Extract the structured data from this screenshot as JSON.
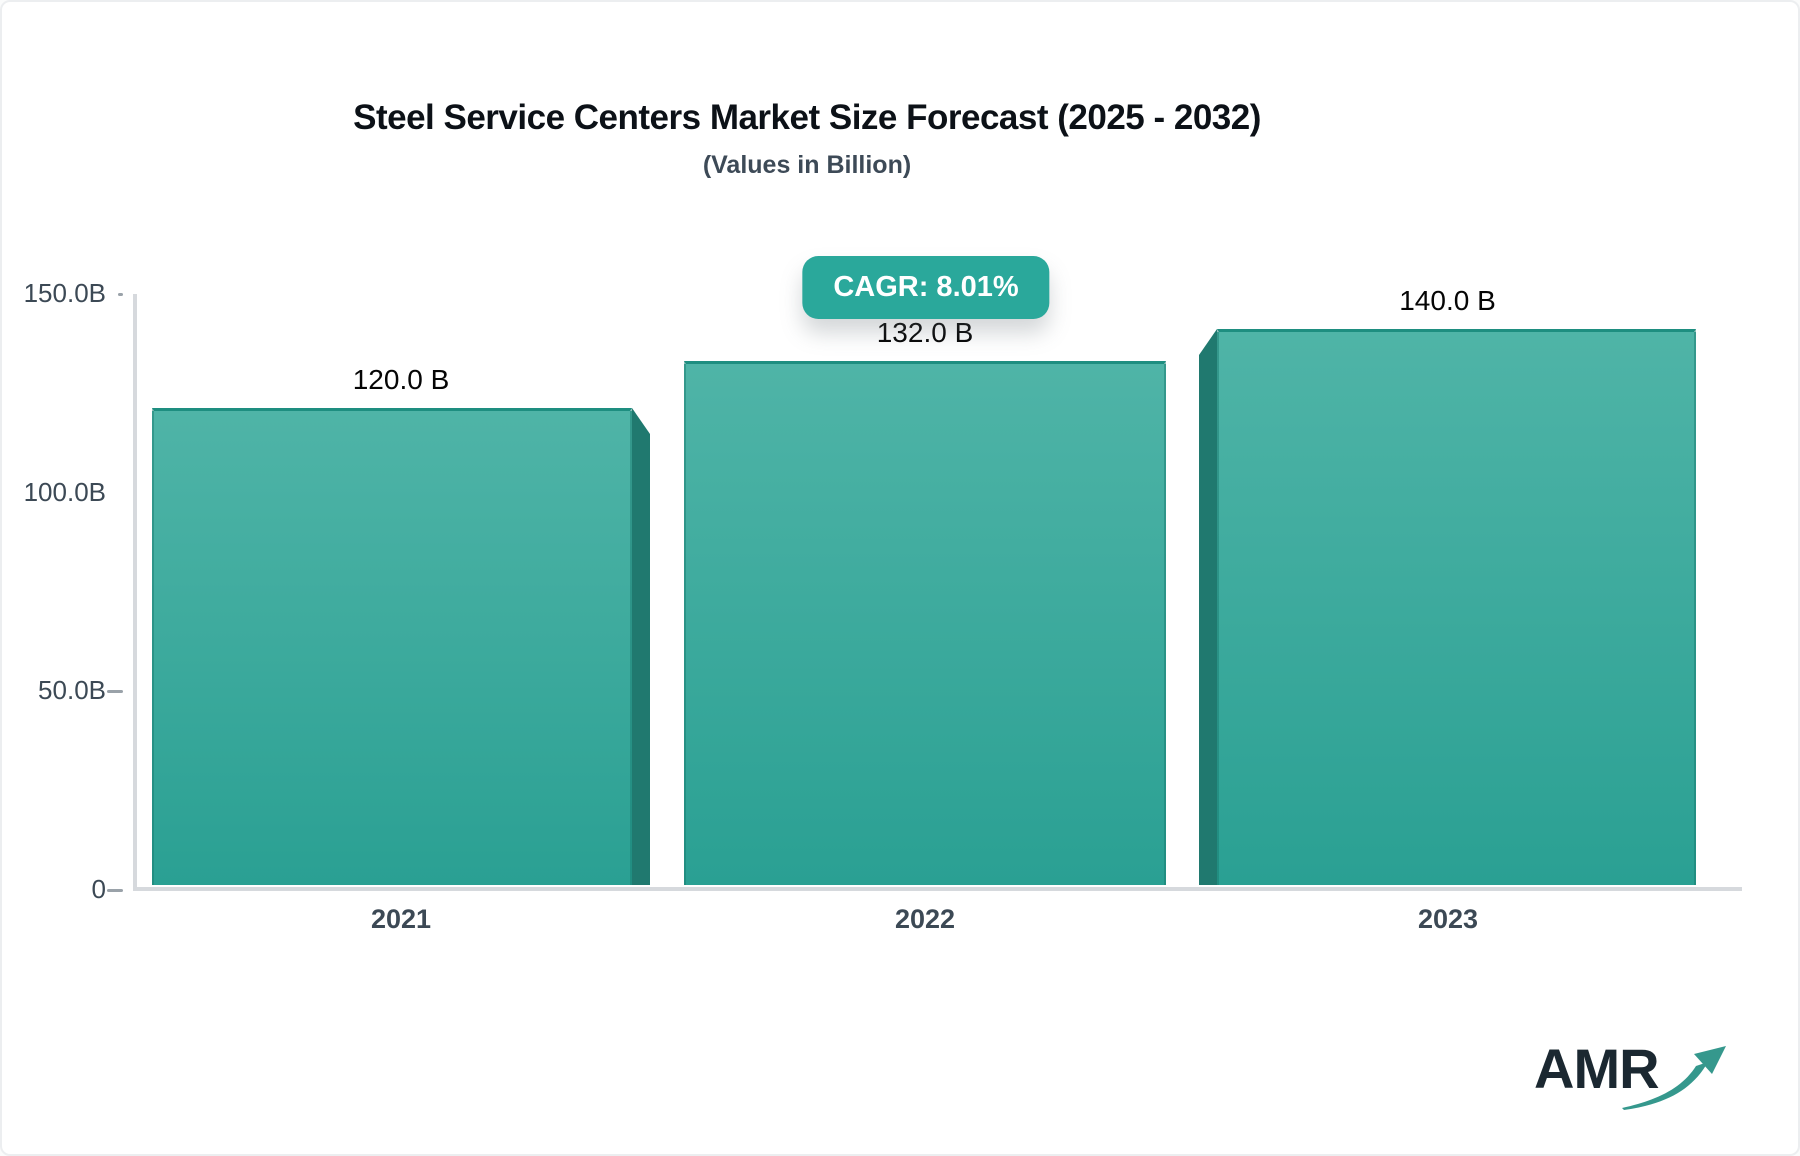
{
  "chart_data": {
    "type": "bar",
    "title": "Steel Service Centers Market Size Forecast (2025 - 2032)",
    "subtitle": "(Values in Billion)",
    "cagr_label": "CAGR: 8.01%",
    "categories": [
      "2021",
      "2022",
      "2023"
    ],
    "values": [
      120.0,
      132.0,
      140.0
    ],
    "value_labels": [
      "120.0 B",
      "132.0 B",
      "140.0 B"
    ],
    "ylim": [
      0,
      150
    ],
    "yticks": [
      {
        "label": "150.0B",
        "value": 150,
        "tick": "dot"
      },
      {
        "label": "100.0B",
        "value": 100,
        "tick": "none"
      },
      {
        "label": "50.0B",
        "value": 50,
        "tick": "dash"
      },
      {
        "label": "0",
        "value": 0,
        "tick": "dash"
      }
    ],
    "grid": false,
    "legend": false,
    "bar_style": "3d-beveled",
    "colors": {
      "bar_top": "#4fb4a7",
      "bar_bottom": "#2aa093",
      "bar_bevel": "#20796f",
      "bar_edge": "#1e8e80",
      "badge_bg": "#2aa89b",
      "axis_line": "#d6d9dd",
      "label_text": "#3c4955",
      "title_text": "#0c1117"
    }
  },
  "branding": {
    "logo_text": "AMR",
    "logo_arrow_icon": "growth-arrow-icon",
    "logo_arrow_color": "#35988d"
  }
}
